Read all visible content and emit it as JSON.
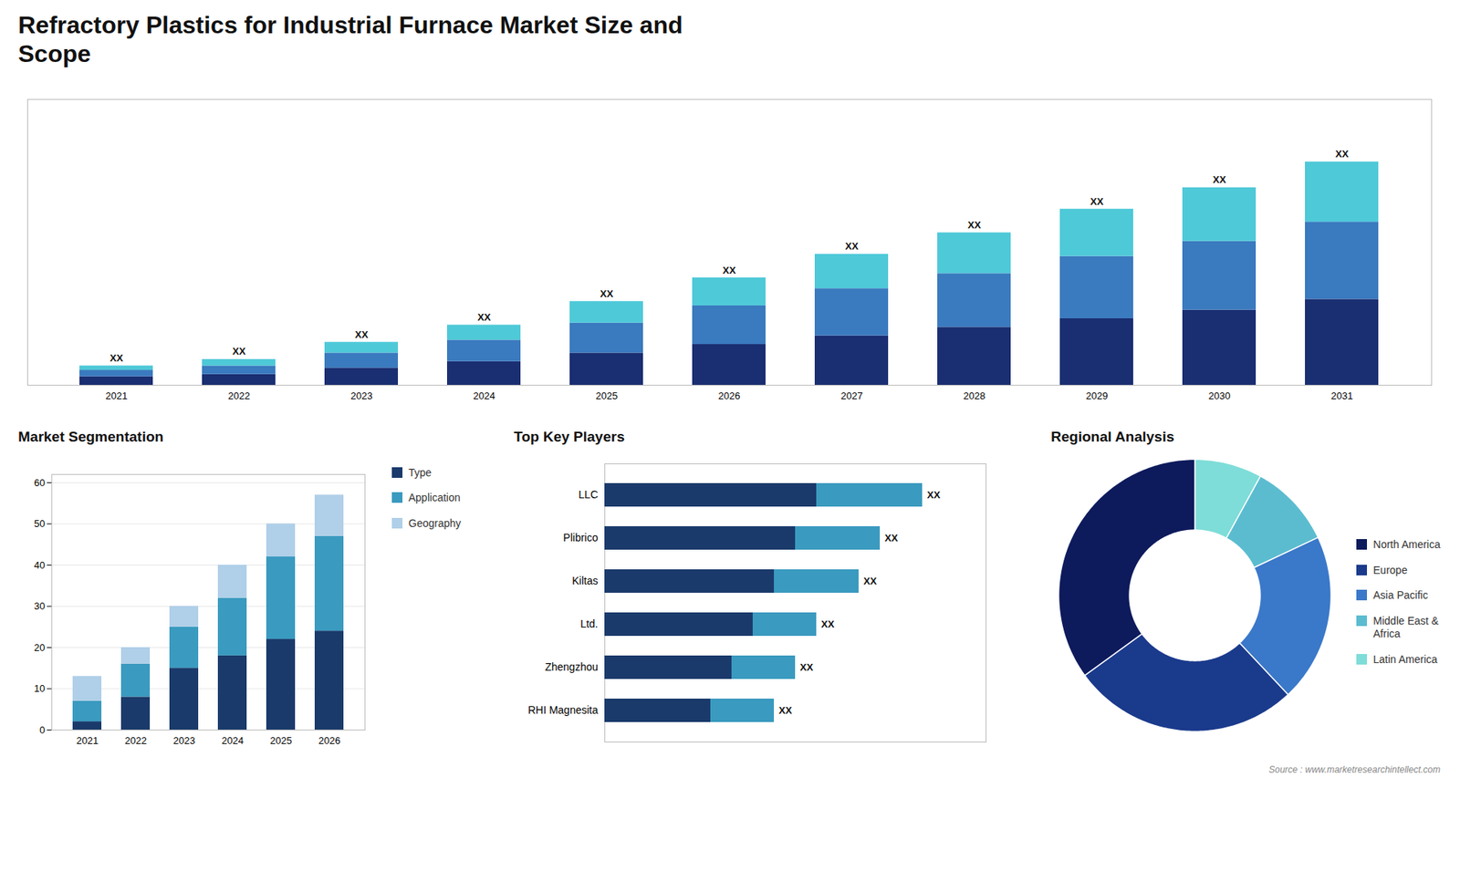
{
  "chart_data": [
    {
      "type": "bar",
      "title": "Refractory Plastics for Industrial Furnace Market Size and\nScope",
      "categories": [
        "2021",
        "2022",
        "2023",
        "2024",
        "2025",
        "2026",
        "2027",
        "2028",
        "2029",
        "2030",
        "2031"
      ],
      "series": [
        {
          "color": "#1a2e72",
          "values": [
            2.0,
            2.5,
            4.0,
            5.5,
            7.5,
            9.5,
            11.5,
            13.5,
            15.5,
            17.5,
            20.0
          ]
        },
        {
          "color": "#3a7abf",
          "values": [
            1.5,
            2.0,
            3.5,
            5.0,
            7.0,
            9.0,
            11.0,
            12.5,
            14.5,
            16.0,
            18.0
          ]
        },
        {
          "color": "#4ec9d8",
          "values": [
            1.0,
            1.5,
            2.5,
            3.5,
            5.0,
            6.5,
            8.0,
            9.5,
            11.0,
            12.5,
            14.0
          ]
        }
      ],
      "stacked": true,
      "ylim": [
        0,
        66.56
      ],
      "tick_labels": "x",
      "grid": false,
      "annotations": [
        "XX",
        "XX",
        "XX",
        "XX",
        "XX",
        "XX",
        "XX",
        "XX",
        "XX",
        "XX",
        "XX"
      ]
    },
    {
      "type": "bar",
      "title": "Market Segmentation",
      "categories": [
        "2021",
        "2022",
        "2023",
        "2024",
        "2025",
        "2026"
      ],
      "series": [
        {
          "name": "Type",
          "color": "#1a3a6b",
          "values": [
            2,
            8,
            15,
            18,
            22,
            24
          ]
        },
        {
          "name": "Application",
          "color": "#3a9abf",
          "values": [
            5,
            8,
            10,
            14,
            20,
            23
          ]
        },
        {
          "name": "Geography",
          "color": "#b0cfe8",
          "values": [
            6,
            4,
            5,
            8,
            8,
            10
          ]
        }
      ],
      "stacked": true,
      "ylim": [
        0,
        62
      ],
      "yticks": [
        0,
        10,
        20,
        30,
        40,
        50,
        60
      ],
      "grid": true,
      "legend": "right"
    },
    {
      "type": "bar",
      "title": "Top Key Players",
      "orientation": "horizontal",
      "stacked": true,
      "categories": [
        "LLC",
        "Plibrico",
        "Kiltas",
        "Ltd.",
        "Zhengzhou",
        "RHI Magnesita"
      ],
      "series": [
        {
          "color": "#1a3a6b",
          "values": [
            10,
            9,
            8,
            7,
            6,
            5
          ]
        },
        {
          "color": "#3a9abf",
          "values": [
            5,
            4,
            4,
            3,
            3,
            3
          ]
        }
      ],
      "xlim": [
        0,
        18
      ],
      "tick_labels": "y",
      "grid": false,
      "annotations": [
        "XX",
        "XX",
        "XX",
        "XX",
        "XX",
        "XX"
      ]
    },
    {
      "type": "donut",
      "title": "Regional Analysis",
      "categories": [
        "Latin America",
        "Middle East &\nAfrica",
        "Asia Pacific",
        "Europe",
        "North America"
      ],
      "values": [
        8,
        10,
        20,
        27,
        35
      ],
      "colors": [
        "#7eddd8",
        "#5bbcd0",
        "#3a78c9",
        "#1a3a8c",
        "#0d1a5c"
      ],
      "legend": "right",
      "annotations": [
        "Source : www.marketresearchintellect.com"
      ]
    }
  ]
}
